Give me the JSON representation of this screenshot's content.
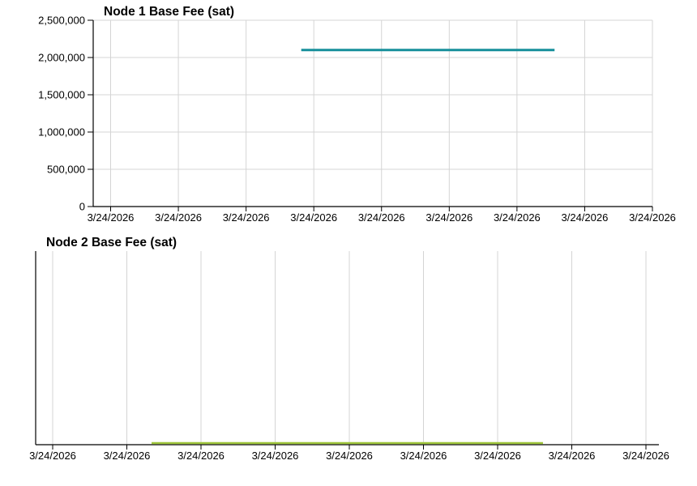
{
  "styles": {
    "background": "#FFFFFF",
    "axis_color": "#000000",
    "grid_color": "#D4D4D4",
    "label_color": "#000000"
  },
  "chart_data": [
    {
      "type": "line",
      "title": "Node 1 Base Fee (sat)",
      "xlabel": "",
      "ylabel": "",
      "x_tick_labels": [
        "3/24/2026",
        "3/24/2026",
        "3/24/2026",
        "3/24/2026",
        "3/24/2026",
        "3/24/2026",
        "3/24/2026",
        "3/24/2026",
        "3/24/2026"
      ],
      "y_axis": {
        "ticks": [
          0,
          500000,
          1000000,
          1500000,
          2000000,
          2500000
        ],
        "tick_labels": [
          "0",
          "500,000",
          "1,000,000",
          "1,500,000",
          "2,000,000",
          "2,500,000"
        ],
        "range": [
          0,
          2500000
        ],
        "labels_visible": true
      },
      "grid": {
        "horizontal": true,
        "vertical": true
      },
      "legend": "none",
      "series": [
        {
          "name": "Node 1 Base Fee",
          "color": "#168F9B",
          "shape": "flat-line",
          "value": 2100000,
          "x_span_fraction": [
            0.372,
            0.825
          ]
        }
      ]
    },
    {
      "type": "line",
      "title": "Node 2 Base Fee (sat)",
      "xlabel": "",
      "ylabel": "",
      "x_tick_labels": [
        "3/24/2026",
        "3/24/2026",
        "3/24/2026",
        "3/24/2026",
        "3/24/2026",
        "3/24/2026",
        "3/24/2026",
        "3/24/2026",
        "3/24/2026"
      ],
      "y_axis": {
        "ticks": [],
        "tick_labels": [],
        "range": [
          0,
          1
        ],
        "labels_visible": false
      },
      "grid": {
        "horizontal": false,
        "vertical": true
      },
      "legend": "none",
      "series": [
        {
          "name": "Node 2 Base Fee",
          "color": "#9FC63B",
          "shape": "flat-line",
          "value": 0,
          "x_span_fraction": [
            0.186,
            0.814
          ]
        }
      ]
    }
  ]
}
